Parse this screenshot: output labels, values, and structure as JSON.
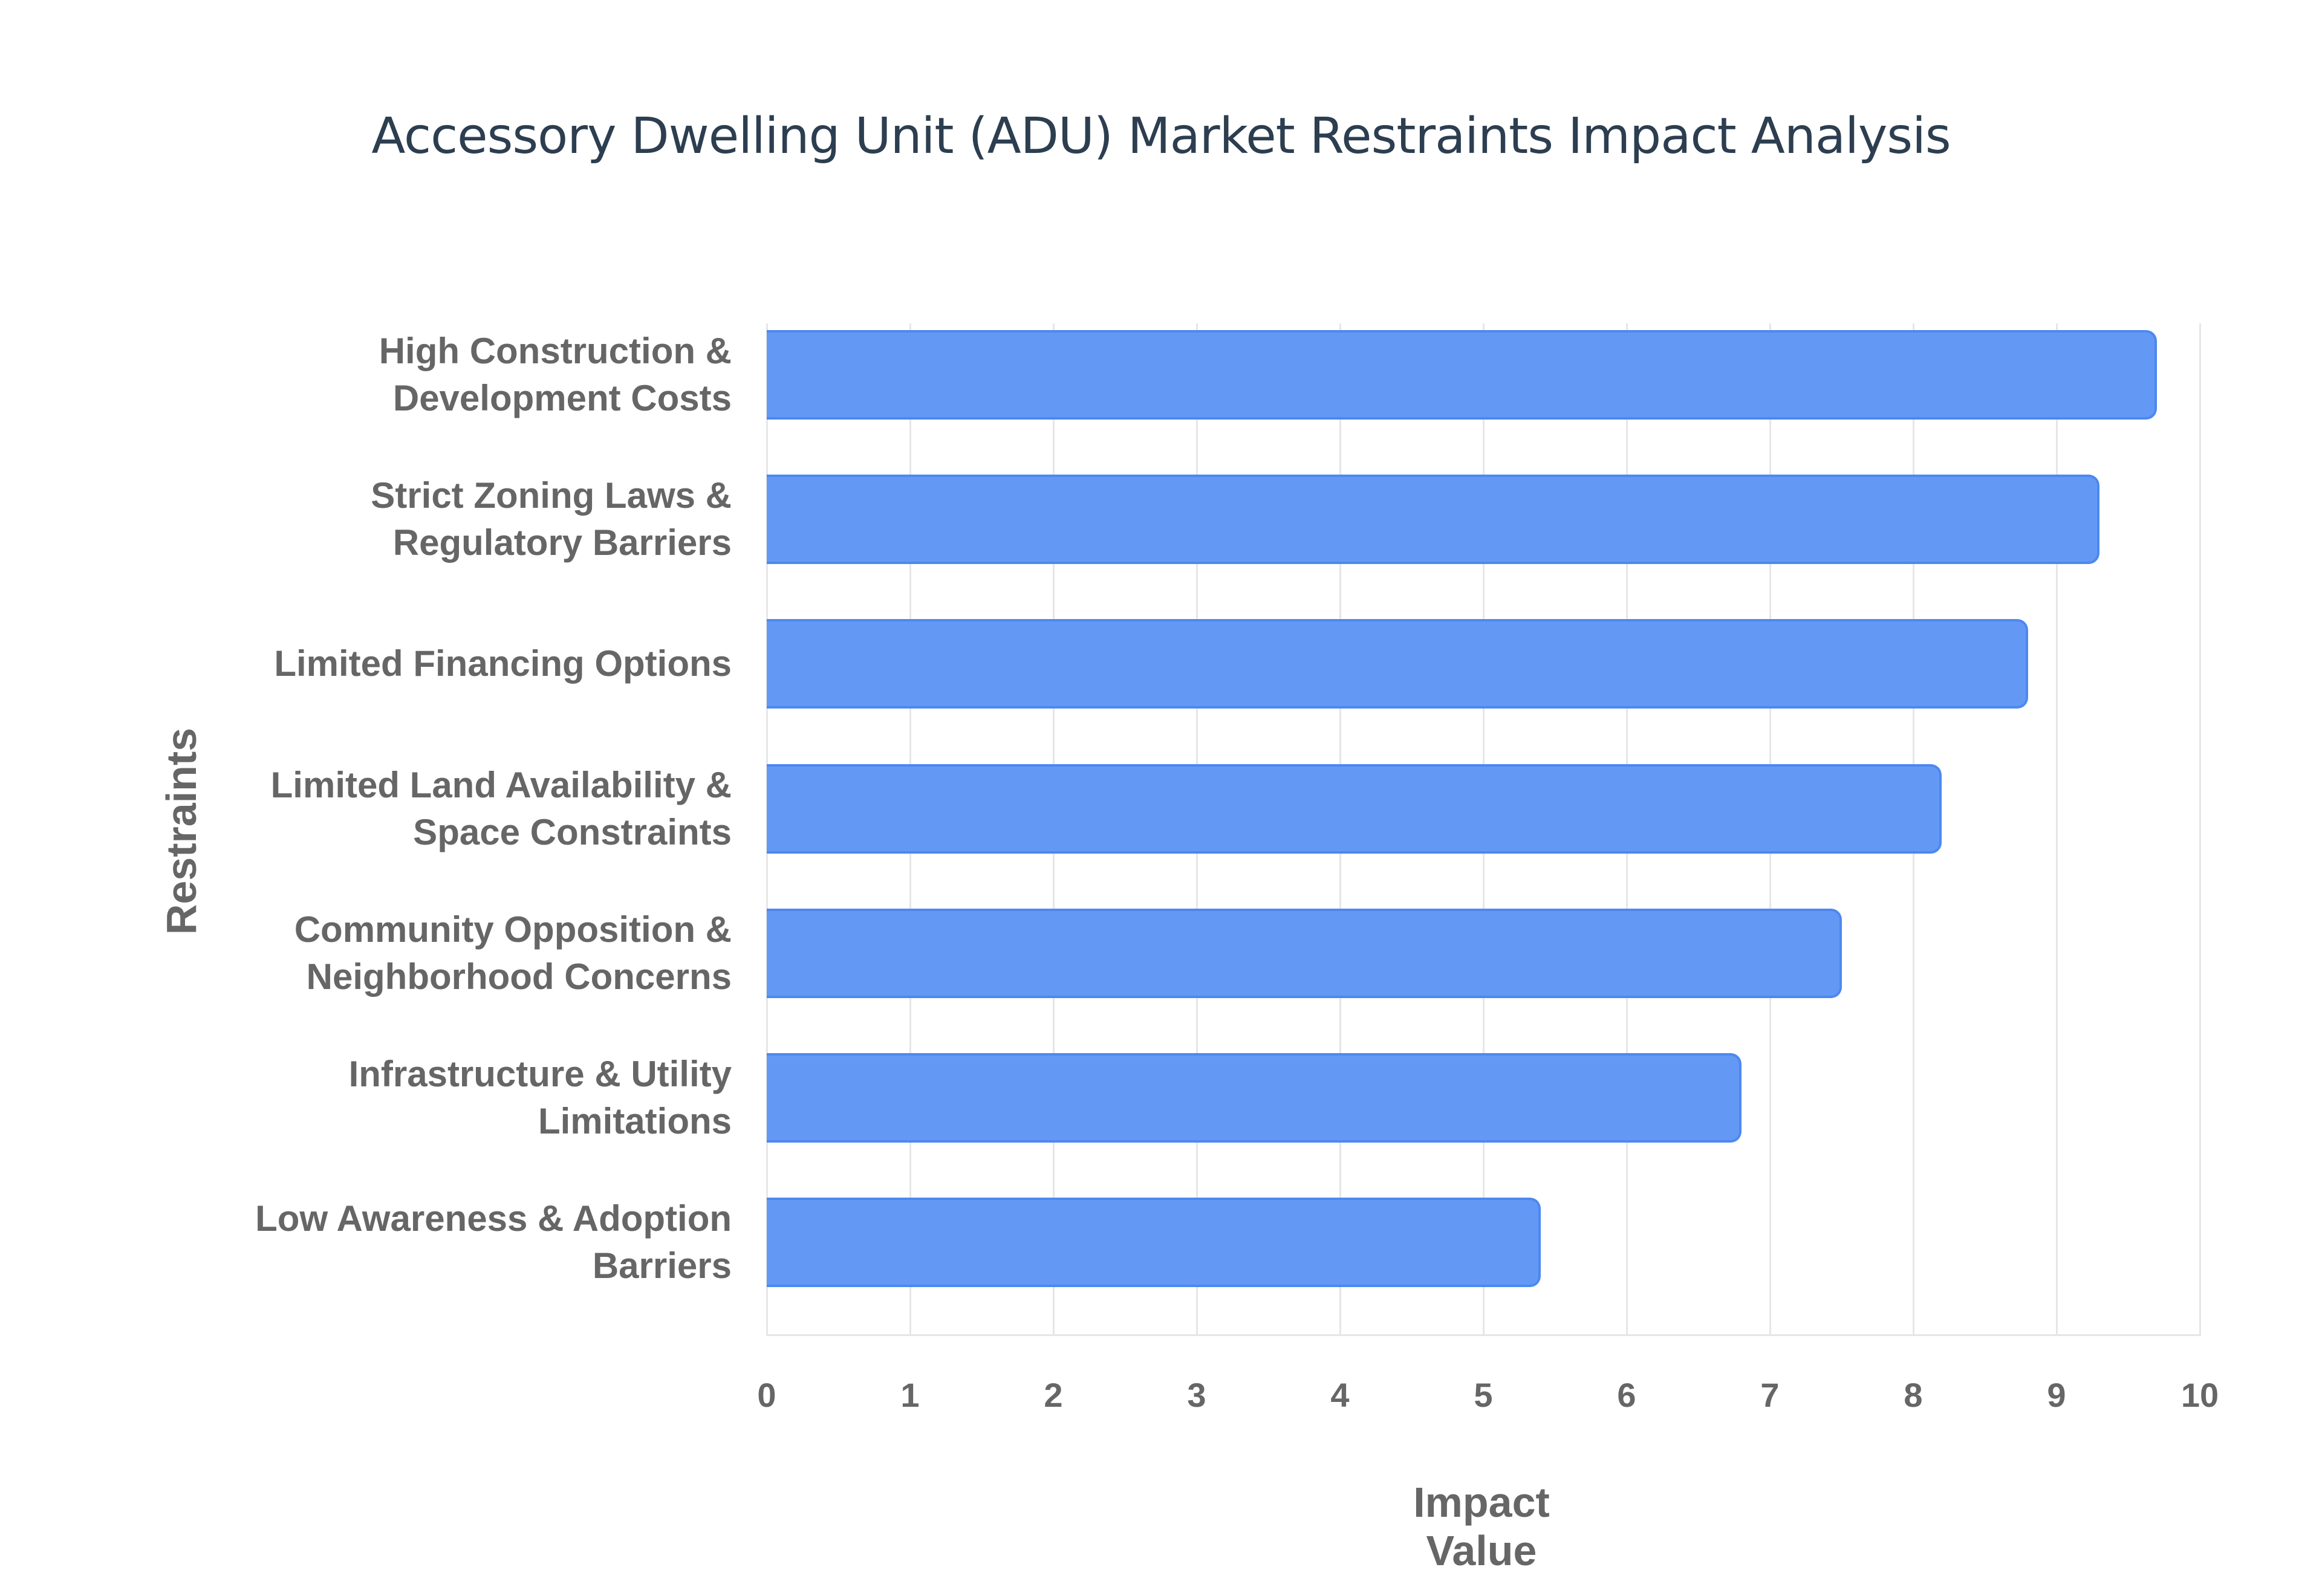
{
  "chart_data": {
    "type": "bar",
    "orientation": "horizontal",
    "title": "Accessory Dwelling Unit (ADU) Market Restraints Impact Analysis",
    "xlabel": "Impact Value",
    "ylabel": "Restraints",
    "xlim": [
      0,
      10
    ],
    "xticks": [
      "0",
      "1",
      "2",
      "3",
      "4",
      "5",
      "6",
      "7",
      "8",
      "9",
      "10"
    ],
    "grid": true,
    "legend": null,
    "categories": [
      "High Construction & Development Costs",
      "Strict Zoning Laws & Regulatory Barriers",
      "Limited Financing Options",
      "Limited Land Availability & Space Constraints",
      "Community Opposition & Neighborhood Concerns",
      "Infrastructure & Utility Limitations",
      "Low Awareness & Adoption Barriers"
    ],
    "category_lines": [
      [
        "High Construction &",
        "Development Costs"
      ],
      [
        "Strict Zoning Laws &",
        "Regulatory Barriers"
      ],
      [
        "Limited Financing Options"
      ],
      [
        "Limited Land Availability &",
        "Space Constraints"
      ],
      [
        "Community Opposition &",
        "Neighborhood Concerns"
      ],
      [
        "Infrastructure & Utility",
        "Limitations"
      ],
      [
        "Low Awareness & Adoption",
        "Barriers"
      ]
    ],
    "values": [
      9.7,
      9.3,
      8.8,
      8.2,
      7.5,
      6.8,
      5.4
    ],
    "bar_color": "#6399f4",
    "bar_border_color": "#4d88f0"
  }
}
